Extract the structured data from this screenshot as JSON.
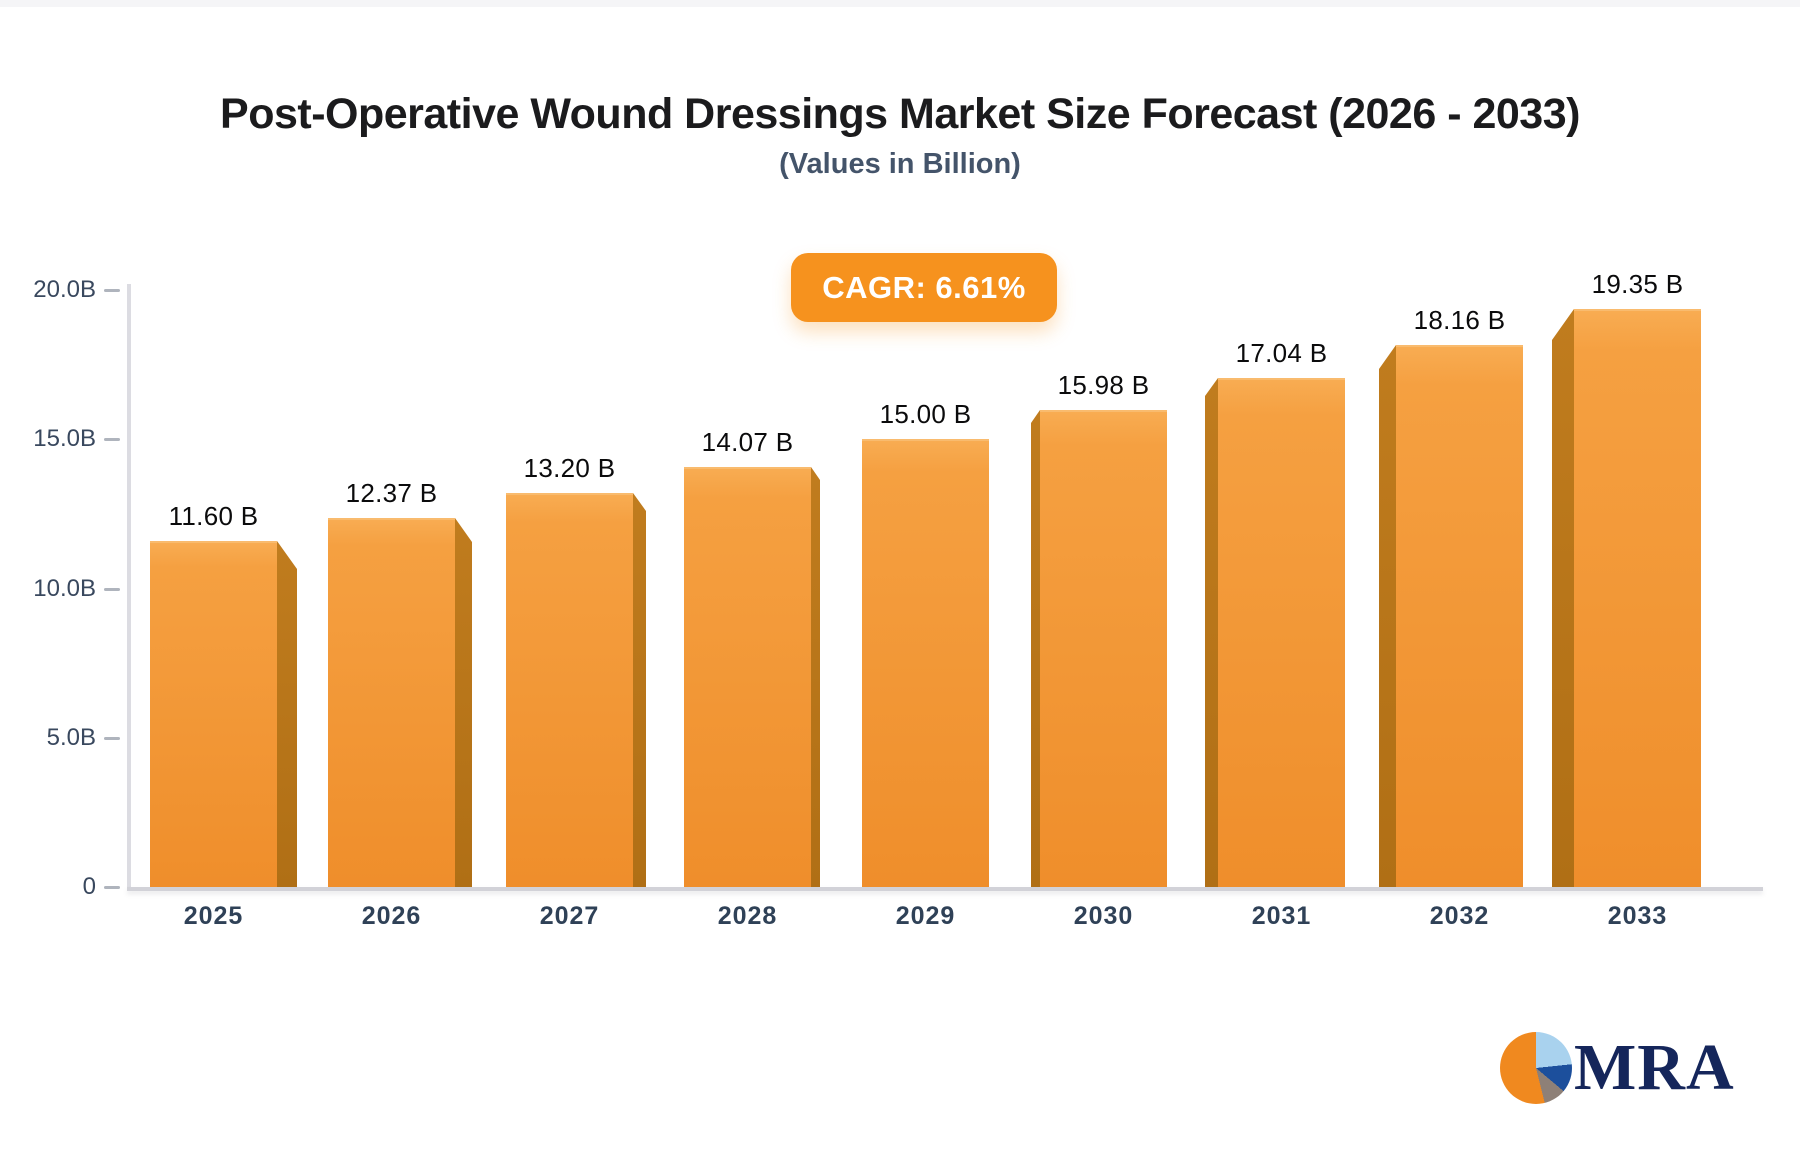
{
  "title": "Post-Operative Wound Dressings Market Size Forecast (2026 - 2033)",
  "subtitle": "(Values in Billion)",
  "badge": {
    "label": "CAGR: 6.61%",
    "background": "#F6921E",
    "text_color": "#FFFFFF"
  },
  "chart_data": {
    "type": "bar",
    "title": "Post-Operative Wound Dressings Market Size Forecast (2026 - 2033)",
    "subtitle": "(Values in Billion)",
    "cagr_label": "CAGR: 6.61%",
    "categories": [
      "2025",
      "2026",
      "2027",
      "2028",
      "2029",
      "2030",
      "2031",
      "2032",
      "2033"
    ],
    "values": [
      11.6,
      12.37,
      13.2,
      14.07,
      15.0,
      15.98,
      17.04,
      18.16,
      19.35
    ],
    "value_labels": [
      "11.60 B",
      "12.37 B",
      "13.20 B",
      "14.07 B",
      "15.00 B",
      "15.98 B",
      "17.04 B",
      "18.16 B",
      "19.35 B"
    ],
    "xlabel": "",
    "ylabel": "",
    "ylim": [
      0,
      20
    ],
    "yticks": [
      {
        "label": "20.0B",
        "value": 20
      },
      {
        "label": "15.0B",
        "value": 15
      },
      {
        "label": "10.0B",
        "value": 10
      },
      {
        "label": "5.0B",
        "value": 5
      },
      {
        "label": "0",
        "value": 0
      }
    ],
    "grid": false,
    "legend": "none",
    "colors": {
      "bar_face": "#F49C3E",
      "bar_side": "#BA7518",
      "axis_line": "#DCDCE2",
      "baseline": "#D2D2D8",
      "tick": "#AFB4BD",
      "axis_text": "#39485E",
      "year_text": "#2F4157",
      "value_text": "#0B0B0C",
      "badge": "#F6921E"
    }
  },
  "logo": {
    "text": "MRA",
    "text_color": "#15265B",
    "pie_colors": {
      "light_blue": "#A9D2EE",
      "dark_blue": "#1C4F9C",
      "gray": "#8E8077",
      "orange": "#F0891F"
    }
  }
}
